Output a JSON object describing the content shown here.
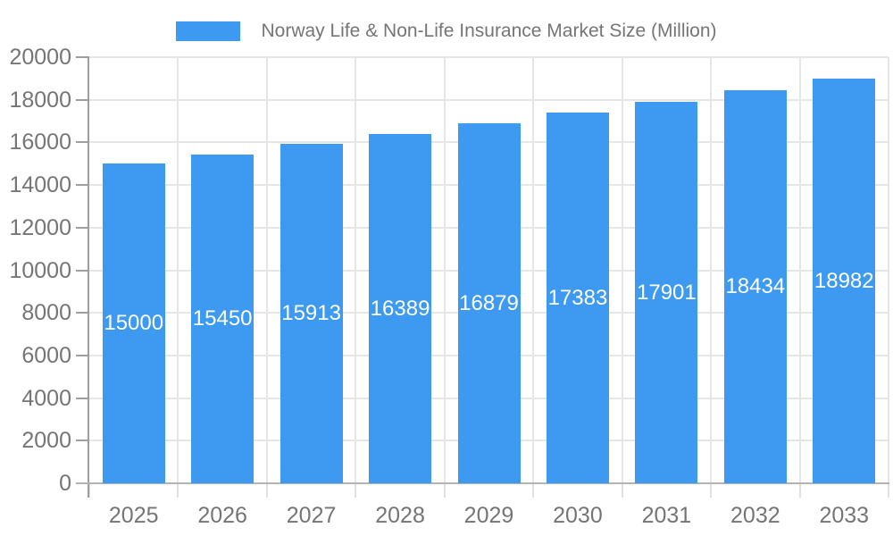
{
  "legend": {
    "label": "Norway Life & Non-Life Insurance Market Size (Million)",
    "swatch_color": "#3d9af0"
  },
  "chart_data": {
    "type": "bar",
    "title": "Norway Life & Non-Life Insurance Market Size (Million)",
    "categories": [
      "2025",
      "2026",
      "2027",
      "2028",
      "2029",
      "2030",
      "2031",
      "2032",
      "2033"
    ],
    "values": [
      15000,
      15450,
      15913,
      16389,
      16879,
      17383,
      17901,
      18434,
      18982
    ],
    "xlabel": "",
    "ylabel": "",
    "ylim": [
      0,
      20000
    ],
    "ytick_step": 2000,
    "yticks": [
      0,
      2000,
      4000,
      6000,
      8000,
      10000,
      12000,
      14000,
      16000,
      18000,
      20000
    ],
    "grid": true,
    "legend_position": "top",
    "value_label_position": "inside-center"
  },
  "colors": {
    "bar": "#3d9af0",
    "text": "#757575",
    "grid": "#e6e6e6",
    "axis_y": "#9e9e9e",
    "axis_x": "#b3b3b3",
    "tick_y": "#9e9e9e",
    "tick_x": "#e0e0e0",
    "value_label": "#ffffff",
    "background": "#ffffff"
  }
}
